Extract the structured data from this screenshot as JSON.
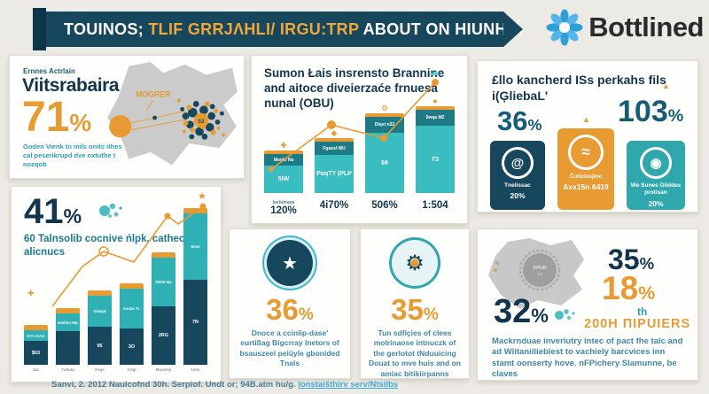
{
  "colors": {
    "banner_navy": "#17475D",
    "navy_text": "#12354D",
    "teal": "#2FB0B5",
    "teal_dark_segment": "#1E7B85",
    "orange": "#E89A33",
    "map_grey": "#C9C9C9",
    "logo_blue": "#2D9FD8",
    "link_blue": "#3FA9DC",
    "background": "#ECEAE4",
    "card_white": "#FEFEFD",
    "body_teal_text": "#3E87A5"
  },
  "header": {
    "banner_part1": "TOUINOS; ",
    "banner_part2": "TLIF GRRJΛHLI/ IRGU:TRP",
    "banner_part3": " ABOUT ON HIUNHIÁ",
    "logo_text": "Bottlined",
    "logo_icon": "pinwheel-icon"
  },
  "panel_region": {
    "eyebrow": "Ernnes Actrlain",
    "title": "Viitsrabaira",
    "value": "71",
    "unit": "%",
    "description": "Goden Vienk tn mils onits ithes cal peserikrupd dve oxtuthe t nozqob",
    "map_label": "MOGRER",
    "cluster_value": "52"
  },
  "panel_trend": {
    "title": "Sumon Łais insrensto Brannine and aitoce diveierzaće frnuesa nunal (OBU)"
  },
  "panel_cards": {
    "title": "£llo kancherd ISs perkahs fils i(ĢliebaL'",
    "stat_left": "36",
    "stat_left_unit": "%",
    "stat_right": "103",
    "stat_right_unit": "%",
    "card1_icon": "@",
    "card1_line1": "Tnelissac",
    "card1_line2": "20%",
    "card2_icon": "≈",
    "card2_line1": "Čuticiesjinc",
    "card2_line2": "Axx15n 6419",
    "card3_icon": "◉",
    "card3_line1": "We Sunes Gliddes protisan",
    "card3_line2": "20%",
    "mini_icon1": "▲",
    "mini_icon2": "▲"
  },
  "panel_stacked": {
    "value": "41",
    "unit": "%",
    "subtitle": "60 Talnsolib cocnive ńlpk. catheote alicnucs"
  },
  "panel_fact1": {
    "icon": "★",
    "value": "36",
    "unit": "%",
    "text": "Dnoce a ccinlip-dase' eurtißag Bigcrray lnetors of bsauszeel peiüyle gbonided Tnals"
  },
  "panel_fact2": {
    "icon": "⚙",
    "value": "35",
    "unit": "%",
    "text": "Tun sdfiçies of clees molrinaose intnuczk of the gerlotot tNduuicing Douat to mve huis and on amiac bitikiirpanns"
  },
  "panel_summary": {
    "stat_main": "32",
    "stat_main_unit": "%",
    "stat_a": "35",
    "stat_a_unit": "%",
    "stat_b": "18",
    "stat_b_unit": "%",
    "stat_small": "th",
    "stat_c": "200H ПIPUIERS",
    "map_center_line1": "KPUR",
    "map_center_line2": "om",
    "paragraph": "Mackrnduae inveriutry intec of pact fhe talc and ad Wiitaniilieblest to vachiely barcvices inn stamt oonserty hove. nFPichery Slamunne, be claves"
  },
  "footer": {
    "text": "Sanvi, 2. 2012 Nauicofnd 30h. Serpiof. Undt or; 94B.atm hu/g. ",
    "link": "Ionstaišthirv serv/Ntsilbs"
  },
  "chart_data": [
    {
      "type": "bar",
      "title": "Sumon Łais insrensto Brannine and aitoce diveierzaće frnuesa nunal (OBU)",
      "categories": [
        "120%",
        "4i70%",
        "506%",
        "1:504"
      ],
      "first_label_note": "laxtumaqa",
      "values": [
        48,
        62,
        90,
        98
      ],
      "unit": "relative bar height (px, estimated from image)",
      "dark_seg": [
        13,
        15,
        18,
        18
      ],
      "bar_top_texts": [
        "Moqte Na",
        "Fganst MU",
        "Dlqst n32",
        "5wqa M2"
      ],
      "bar_body_texts": [
        "5lW",
        "PoqT? (PLP",
        "69",
        "T3"
      ],
      "bar_icons": [
        "✚",
        "◆",
        "⚙",
        "●"
      ],
      "line_points": [
        [
          22,
          128
        ],
        [
          90,
          78
        ],
        [
          149,
          93
        ],
        [
          207,
          30
        ]
      ],
      "dot_radii": [
        3,
        5,
        4,
        4
      ],
      "float_icons": [
        {
          "glyph": "☁",
          "color": "#5BC8D6",
          "x": 200,
          "y": 12,
          "size": 12
        }
      ],
      "xlabel": "",
      "ylabel": "",
      "grid": false,
      "legend": "none"
    },
    {
      "type": "stacked-bar",
      "title": "41% — 60 Talnsolib cocnive ńlpk. catheote alicnucs",
      "categories": [
        "Sar",
        "Tutlata",
        "Fege",
        "Arlgt",
        "Macktey",
        "1mtv"
      ],
      "series": [
        {
          "name": "base-navy",
          "values": [
            27,
            38,
            43,
            41,
            66,
            96
          ]
        },
        {
          "name": "mid-teal",
          "values": [
            12,
            20,
            35,
            45,
            55,
            75
          ]
        },
        {
          "name": "cap-orange",
          "values": [
            6,
            6,
            6,
            6,
            6,
            6
          ]
        }
      ],
      "unit": "relative segment height (px, estimated from image)",
      "navy_texts": [
        "$53",
        "",
        "95",
        "3O",
        "2RG",
        "7N"
      ],
      "teal_texts": [
        "O?1 KAG",
        "Iweklst Mp",
        "Gtwqd",
        "4mqw 7L",
        "40M4 My",
        "5mw"
      ],
      "line_points": [
        [
          46,
          135
        ],
        [
          80,
          90
        ],
        [
          104,
          73
        ],
        [
          138,
          85
        ],
        [
          176,
          33
        ],
        [
          188,
          42
        ],
        [
          216,
          22
        ]
      ],
      "ring_point": [
        104,
        73
      ],
      "float_icons": [
        {
          "glyph": "☁",
          "color": "#2FB0B5",
          "x": 194,
          "y": 46,
          "size": 13
        },
        {
          "glyph": "★",
          "color": "#E89A33",
          "x": 210,
          "y": 6,
          "size": 11
        },
        {
          "glyph": "✚",
          "color": "#E89A33",
          "x": 18,
          "y": 116,
          "size": 9
        }
      ],
      "xlabel": "",
      "ylabel": "",
      "grid": false,
      "legend": "none"
    }
  ]
}
